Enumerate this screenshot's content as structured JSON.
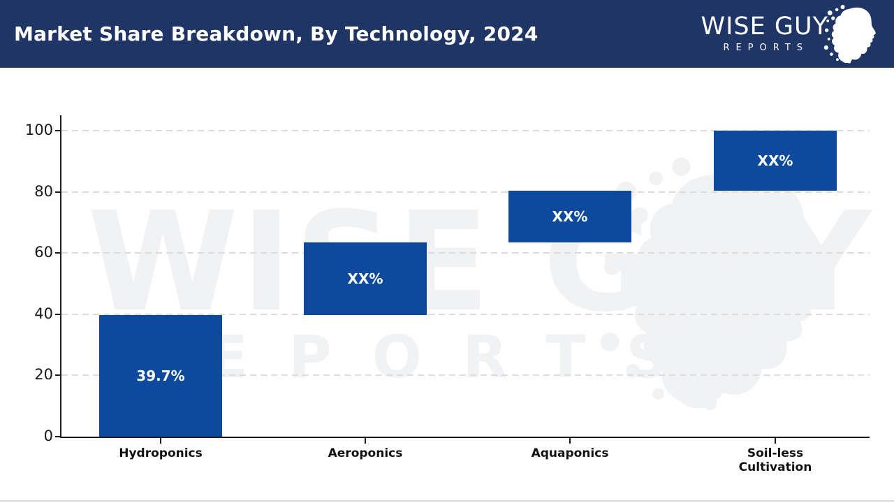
{
  "header": {
    "title": "Market Share Breakdown, By Technology, 2024",
    "logo": {
      "name_top": "WISE GUY",
      "name_bottom": "REPORTS"
    }
  },
  "watermark": {
    "text_top": "WISE GUY",
    "text_bottom": "REPORTS"
  },
  "chart_data": {
    "type": "bar",
    "subtype": "floating-waterfall",
    "title": "Market Share Breakdown, By Technology, 2024",
    "categories": [
      "Hydroponics",
      "Aeroponics",
      "Aquaponics",
      "Soil-less Cultivation"
    ],
    "segments": [
      {
        "category": "Hydroponics",
        "start": 0,
        "end": 39.7,
        "label": "39.7%"
      },
      {
        "category": "Aeroponics",
        "start": 39.7,
        "end": 63.5,
        "label": "XX%"
      },
      {
        "category": "Aquaponics",
        "start": 63.5,
        "end": 80.3,
        "label": "XX%"
      },
      {
        "category": "Soil-less Cultivation",
        "start": 80.3,
        "end": 100,
        "label": "XX%"
      }
    ],
    "xlabel": "",
    "ylabel": "",
    "ylim": [
      0,
      100
    ],
    "yticks": [
      0,
      20,
      40,
      60,
      80,
      100
    ],
    "grid": "horizontal-dashed",
    "legend": "none",
    "bar_color": "#0D4A9E",
    "bar_label_color": "#FFFFFF"
  },
  "colors": {
    "header_bg": "#1E3565",
    "bar": "#0D4A9E",
    "grid": "#DCDCDC",
    "axis": "#1A1A1A",
    "watermark": "#F1F2F4"
  }
}
